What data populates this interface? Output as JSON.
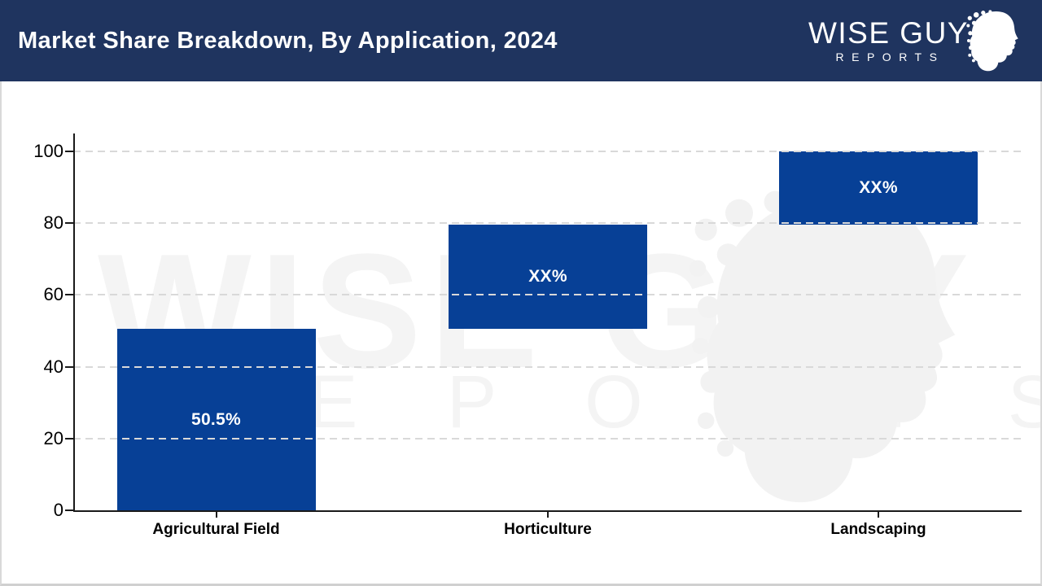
{
  "header": {
    "title": "Market Share Breakdown, By Application, 2024",
    "logo": {
      "name_line": "WISE GUY",
      "reports_line": "REPORTS"
    }
  },
  "watermark": {
    "line1": "WISE GUY",
    "line2": "R E P O R T S"
  },
  "chart_data": {
    "type": "bar",
    "variant": "floating-segment-bars",
    "title": "Market Share Breakdown, By Application, 2024",
    "categories": [
      "Agricultural Field",
      "Horticulture",
      "Landscaping"
    ],
    "segments": [
      {
        "category": "Agricultural Field",
        "start": 0,
        "end": 50.5,
        "label": "50.5%"
      },
      {
        "category": "Horticulture",
        "start": 50.5,
        "end": 79.5,
        "label": "XX%"
      },
      {
        "category": "Landscaping",
        "start": 79.5,
        "end": 100,
        "label": "XX%"
      }
    ],
    "xlabel": "",
    "ylabel": "",
    "ylim": [
      0,
      105
    ],
    "yticks": [
      0,
      20,
      40,
      60,
      80,
      100
    ],
    "grid": true,
    "gridline_style": "dashed",
    "legend": false,
    "bar_color": "#074096",
    "bar_label_color": "#ffffff"
  },
  "colors": {
    "header_bg": "#1f345f",
    "header_text": "#ffffff",
    "bar_fill": "#074096",
    "axis": "#1a1a1a",
    "tick_text": "#000000",
    "gridline": "#d9d9d9",
    "watermark": "#f4f4f4",
    "page_border": "#d9d9d9"
  }
}
